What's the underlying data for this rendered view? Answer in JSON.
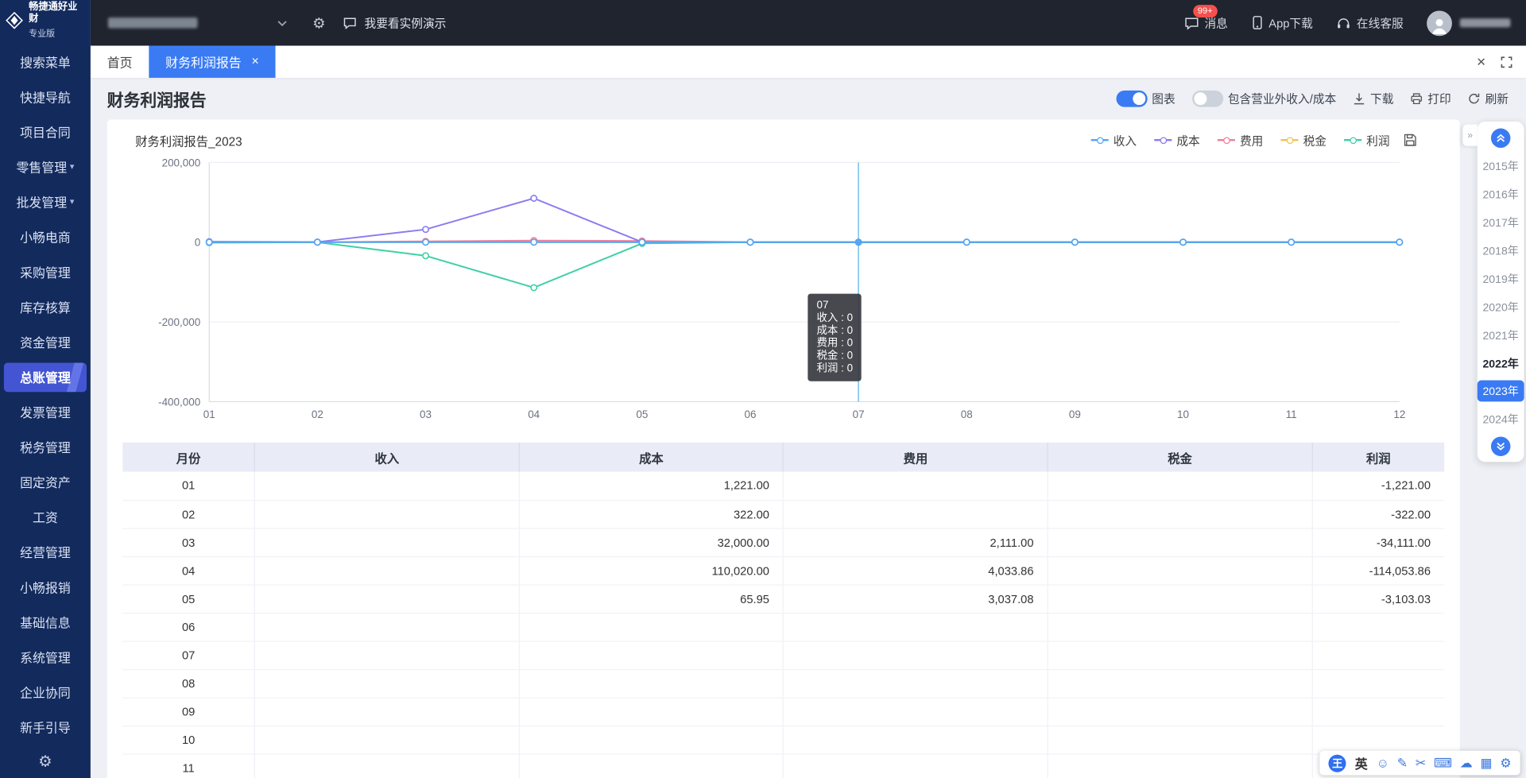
{
  "colors": {
    "primary": "#3a7bf4",
    "sidebar_bg": "#132a5c",
    "sidebar_active": "#4355d3",
    "topbar_bg": "#20242e",
    "page_bg": "#eef0f5",
    "table_header_bg": "#e9ecf6",
    "badge_red": "#f5504e"
  },
  "sidebar": {
    "logo_title": "畅捷通好业财",
    "logo_subtitle": "专业版",
    "items": [
      {
        "key": "search-menu",
        "label": "搜索菜单",
        "has_arrow": false,
        "active": false
      },
      {
        "key": "quick-nav",
        "label": "快捷导航",
        "has_arrow": false,
        "active": false
      },
      {
        "key": "project-contract",
        "label": "项目合同",
        "has_arrow": false,
        "active": false
      },
      {
        "key": "retail-mgmt",
        "label": "零售管理",
        "has_arrow": true,
        "active": false
      },
      {
        "key": "wholesale-mgmt",
        "label": "批发管理",
        "has_arrow": true,
        "active": false
      },
      {
        "key": "ecommerce",
        "label": "小畅电商",
        "has_arrow": false,
        "active": false
      },
      {
        "key": "purchase-mgmt",
        "label": "采购管理",
        "has_arrow": false,
        "active": false
      },
      {
        "key": "inventory-accounting",
        "label": "库存核算",
        "has_arrow": false,
        "active": false
      },
      {
        "key": "funds-mgmt",
        "label": "资金管理",
        "has_arrow": false,
        "active": false
      },
      {
        "key": "general-ledger",
        "label": "总账管理",
        "has_arrow": false,
        "active": true
      },
      {
        "key": "invoice-mgmt",
        "label": "发票管理",
        "has_arrow": false,
        "active": false
      },
      {
        "key": "tax-mgmt",
        "label": "税务管理",
        "has_arrow": false,
        "active": false
      },
      {
        "key": "fixed-assets",
        "label": "固定资产",
        "has_arrow": false,
        "active": false
      },
      {
        "key": "payroll",
        "label": "工资",
        "has_arrow": false,
        "active": false
      },
      {
        "key": "business-mgmt",
        "label": "经营管理",
        "has_arrow": false,
        "active": false
      },
      {
        "key": "expense-claim",
        "label": "小畅报销",
        "has_arrow": false,
        "active": false
      },
      {
        "key": "base-info",
        "label": "基础信息",
        "has_arrow": false,
        "active": false
      },
      {
        "key": "system-mgmt",
        "label": "系统管理",
        "has_arrow": false,
        "active": false
      },
      {
        "key": "enterprise-collab",
        "label": "企业协同",
        "has_arrow": false,
        "active": false
      },
      {
        "key": "beginner-guide",
        "label": "新手引导",
        "has_arrow": false,
        "active": false
      }
    ]
  },
  "topbar": {
    "company_select_redacted": true,
    "demo_label": "我要看实例演示",
    "messages_label": "消息",
    "messages_badge": "99+",
    "app_download_label": "App下载",
    "support_label": "在线客服",
    "username_redacted": true
  },
  "tabs": [
    {
      "label": "首页",
      "active": false,
      "closable": false
    },
    {
      "label": "财务利润报告",
      "active": true,
      "closable": true
    }
  ],
  "page": {
    "title": "财务利润报告",
    "toggles": [
      {
        "label": "图表",
        "on": true
      },
      {
        "label": "包含营业外收入/成本",
        "on": false
      }
    ],
    "buttons": [
      {
        "key": "download",
        "label": "下载"
      },
      {
        "key": "print",
        "label": "打印"
      },
      {
        "key": "refresh",
        "label": "刷新"
      }
    ]
  },
  "chart_data": {
    "type": "line",
    "title": "财务利润报告_2023",
    "x": [
      "01",
      "02",
      "03",
      "04",
      "05",
      "06",
      "07",
      "08",
      "09",
      "10",
      "11",
      "12"
    ],
    "ylim": [
      -400000,
      200000
    ],
    "grid": true,
    "legend_position": "top-right",
    "yticks": [
      {
        "label": "200,000",
        "value": 200000
      },
      {
        "label": "0",
        "value": 0
      },
      {
        "label": "-200,000",
        "value": -200000
      },
      {
        "label": "-400,000",
        "value": -400000
      }
    ],
    "series": [
      {
        "key": "income",
        "name": "收入",
        "color": "#54a5f5",
        "values": [
          0,
          0,
          0,
          0,
          0,
          0,
          0,
          0,
          0,
          0,
          0,
          0
        ]
      },
      {
        "key": "cost",
        "name": "成本",
        "color": "#8a7cf0",
        "values": [
          1221,
          322,
          32000,
          110020,
          65.95,
          0,
          0,
          0,
          0,
          0,
          0,
          0
        ]
      },
      {
        "key": "expense",
        "name": "费用",
        "color": "#ee7f9e",
        "values": [
          0,
          0,
          2111,
          4033.86,
          3037.08,
          0,
          0,
          0,
          0,
          0,
          0,
          0
        ]
      },
      {
        "key": "tax",
        "name": "税金",
        "color": "#f3c34c",
        "values": [
          0,
          0,
          0,
          0,
          0,
          0,
          0,
          0,
          0,
          0,
          0,
          0
        ]
      },
      {
        "key": "profit",
        "name": "利润",
        "color": "#3ed0a6",
        "values": [
          -1221,
          -322,
          -34111,
          -114053.86,
          -3103.03,
          0,
          0,
          0,
          0,
          0,
          0,
          0
        ]
      }
    ],
    "tooltip": {
      "index": 6,
      "title": "07",
      "items": [
        {
          "label": "收入",
          "value": "0"
        },
        {
          "label": "成本",
          "value": "0"
        },
        {
          "label": "费用",
          "value": "0"
        },
        {
          "label": "税金",
          "value": "0"
        },
        {
          "label": "利润",
          "value": "0"
        }
      ]
    }
  },
  "table": {
    "headers": [
      "月份",
      "收入",
      "成本",
      "费用",
      "税金",
      "利润"
    ],
    "rows": [
      [
        "01",
        "",
        "1,221.00",
        "",
        "",
        "-1,221.00"
      ],
      [
        "02",
        "",
        "322.00",
        "",
        "",
        "-322.00"
      ],
      [
        "03",
        "",
        "32,000.00",
        "2,111.00",
        "",
        "-34,111.00"
      ],
      [
        "04",
        "",
        "110,020.00",
        "4,033.86",
        "",
        "-114,053.86"
      ],
      [
        "05",
        "",
        "65.95",
        "3,037.08",
        "",
        "-3,103.03"
      ],
      [
        "06",
        "",
        "",
        "",
        "",
        ""
      ],
      [
        "07",
        "",
        "",
        "",
        "",
        ""
      ],
      [
        "08",
        "",
        "",
        "",
        "",
        ""
      ],
      [
        "09",
        "",
        "",
        "",
        "",
        ""
      ],
      [
        "10",
        "",
        "",
        "",
        "",
        ""
      ],
      [
        "11",
        "",
        "",
        "",
        "",
        ""
      ]
    ]
  },
  "year_panel": {
    "years": [
      "2015年",
      "2016年",
      "2017年",
      "2018年",
      "2019年",
      "2020年",
      "2021年",
      "2022年",
      "2023年",
      "2024年"
    ],
    "selected": "2023年",
    "emphasized": "2022年"
  },
  "ime_bar": {
    "logo": "王",
    "lang": "英",
    "icons": [
      {
        "name": "emoji-icon",
        "glyph": "☺"
      },
      {
        "name": "pen-icon",
        "glyph": "✎"
      },
      {
        "name": "scissors-icon",
        "glyph": "✂"
      },
      {
        "name": "keyboard-icon",
        "glyph": "⌨"
      },
      {
        "name": "cloud-icon",
        "glyph": "☁"
      },
      {
        "name": "skin-grid-icon",
        "glyph": "▦"
      },
      {
        "name": "gear-icon",
        "glyph": "⚙"
      }
    ]
  }
}
